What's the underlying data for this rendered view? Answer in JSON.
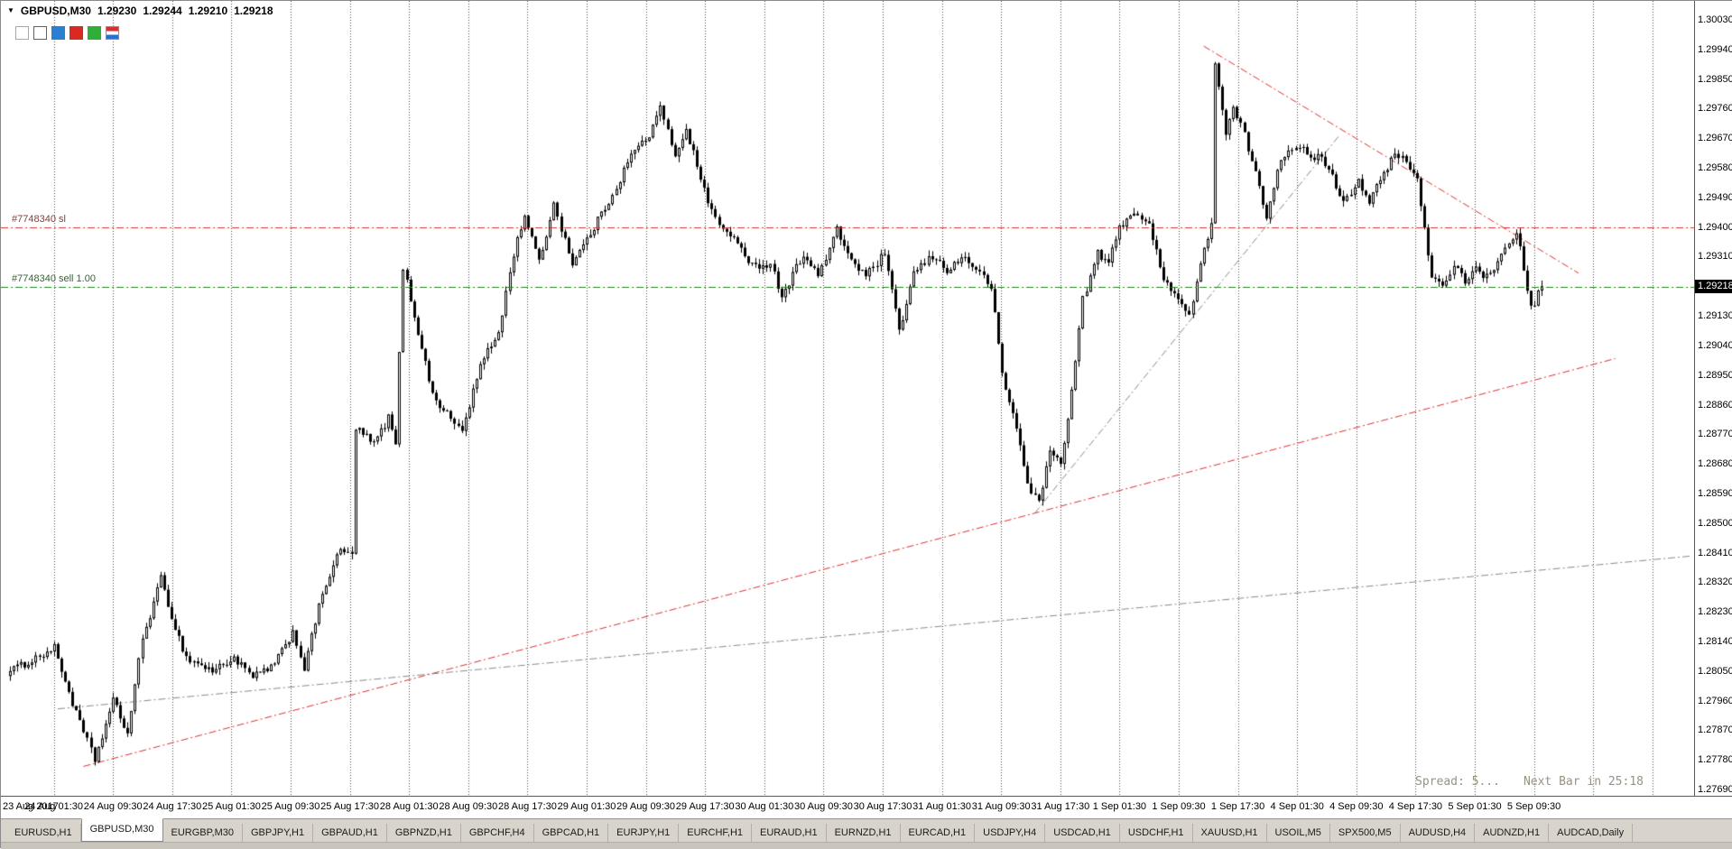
{
  "chart": {
    "symbol_header": {
      "dropdown_icon": "▼",
      "symbol": "GBPUSD,M30",
      "open": "1.29230",
      "high": "1.29244",
      "low": "1.29210",
      "close": "1.29218"
    },
    "toolbar_icons": [
      {
        "name": "white-square-icon",
        "fill": "#ffffff",
        "border": "#a8a8a8"
      },
      {
        "name": "red-outline-square-icon",
        "fill": "#ffffff",
        "border": "#d83030"
      },
      {
        "name": "blue-square-icon",
        "fill": "#2a7fd4",
        "border": "#2a7fd4"
      },
      {
        "name": "red-square-icon",
        "fill": "#d82a20",
        "border": "#d82a20"
      },
      {
        "name": "green-square-icon",
        "fill": "#2fae3a",
        "border": "#2fae3a"
      },
      {
        "name": "flag-stripes-icon",
        "fill": "stripes",
        "border": "#909090",
        "stripes": [
          "#d83030",
          "#ffffff",
          "#2a6fd4"
        ]
      }
    ],
    "orders": [
      {
        "label": "#7748340 sl",
        "price": 1.294,
        "line_color": "#e03030",
        "label_color": "#7a4040"
      },
      {
        "label": "#7748340 sell 1.00",
        "price": 1.29218,
        "line_color": "#1c8a1c",
        "label_color": "#3a5f3a"
      }
    ],
    "current_price": 1.29218,
    "price_badge": "1.29218",
    "status": {
      "spread": "Spread: 5...",
      "next_bar": "Next Bar in 25:18"
    }
  },
  "chart_data": {
    "type": "candlestick",
    "symbol": "GBPUSD",
    "timeframe": "M30",
    "grid": "vertical-dotted",
    "price_axis": {
      "max": 1.3003,
      "min": 1.2769,
      "step": 0.0009,
      "labels": [
        "1.30030",
        "1.29940",
        "1.29850",
        "1.29760",
        "1.29670",
        "1.29580",
        "1.29490",
        "1.29400",
        "1.29310",
        "1.29130",
        "1.29040",
        "1.28950",
        "1.28860",
        "1.28770",
        "1.28680",
        "1.28590",
        "1.28500",
        "1.28410",
        "1.28320",
        "1.28230",
        "1.28140",
        "1.28050",
        "1.27960",
        "1.27870",
        "1.27780",
        "1.27690"
      ]
    },
    "time_axis": [
      "23 Aug 2017",
      "24 Aug 01:30",
      "24 Aug 09:30",
      "24 Aug 17:30",
      "25 Aug 01:30",
      "25 Aug 09:30",
      "25 Aug 17:30",
      "28 Aug 01:30",
      "28 Aug 09:30",
      "28 Aug 17:30",
      "29 Aug 01:30",
      "29 Aug 09:30",
      "29 Aug 17:30",
      "30 Aug 01:30",
      "30 Aug 09:30",
      "30 Aug 17:30",
      "31 Aug 01:30",
      "31 Aug 09:30",
      "31 Aug 17:30",
      "1 Sep 01:30",
      "1 Sep 09:30",
      "1 Sep 17:30",
      "4 Sep 01:30",
      "4 Sep 09:30",
      "4 Sep 17:30",
      "5 Sep 01:30",
      "5 Sep 09:30"
    ],
    "bars_per_label": 16,
    "bar_count": 418,
    "path": [
      [
        2,
        1.2806
      ],
      [
        12,
        1.2812
      ],
      [
        18,
        1.2792
      ],
      [
        23,
        1.2778
      ],
      [
        28,
        1.2796
      ],
      [
        32,
        1.2786
      ],
      [
        36,
        1.2815
      ],
      [
        41,
        1.2833
      ],
      [
        45,
        1.2818
      ],
      [
        48,
        1.2809
      ],
      [
        55,
        1.2805
      ],
      [
        61,
        1.2809
      ],
      [
        66,
        1.2803
      ],
      [
        72,
        1.2807
      ],
      [
        77,
        1.2817
      ],
      [
        80,
        1.2806
      ],
      [
        85,
        1.2829
      ],
      [
        90,
        1.2842
      ],
      [
        93,
        1.284
      ],
      [
        94,
        1.2879
      ],
      [
        99,
        1.2874
      ],
      [
        103,
        1.2882
      ],
      [
        105,
        1.2874
      ],
      [
        107,
        1.2928
      ],
      [
        110,
        1.2913
      ],
      [
        115,
        1.2889
      ],
      [
        119,
        1.2883
      ],
      [
        123,
        1.2878
      ],
      [
        128,
        1.2898
      ],
      [
        133,
        1.2908
      ],
      [
        137,
        1.2932
      ],
      [
        140,
        1.2944
      ],
      [
        144,
        1.2929
      ],
      [
        148,
        1.2947
      ],
      [
        153,
        1.2929
      ],
      [
        158,
        1.2938
      ],
      [
        164,
        1.295
      ],
      [
        169,
        1.2962
      ],
      [
        174,
        1.2968
      ],
      [
        177,
        1.2976
      ],
      [
        181,
        1.2962
      ],
      [
        184,
        1.297
      ],
      [
        189,
        1.2951
      ],
      [
        193,
        1.294
      ],
      [
        198,
        1.2936
      ],
      [
        201,
        1.2928
      ],
      [
        207,
        1.2929
      ],
      [
        210,
        1.2919
      ],
      [
        216,
        1.2932
      ],
      [
        220,
        1.2925
      ],
      [
        225,
        1.2939
      ],
      [
        229,
        1.293
      ],
      [
        233,
        1.2925
      ],
      [
        238,
        1.2932
      ],
      [
        242,
        1.2908
      ],
      [
        246,
        1.2926
      ],
      [
        251,
        1.2931
      ],
      [
        255,
        1.2927
      ],
      [
        260,
        1.2931
      ],
      [
        263,
        1.2927
      ],
      [
        267,
        1.2922
      ],
      [
        270,
        1.2895
      ],
      [
        274,
        1.2879
      ],
      [
        277,
        1.2862
      ],
      [
        280,
        1.2856
      ],
      [
        283,
        1.2872
      ],
      [
        286,
        1.2868
      ],
      [
        289,
        1.289
      ],
      [
        292,
        1.2918
      ],
      [
        296,
        1.2932
      ],
      [
        299,
        1.2929
      ],
      [
        302,
        1.294
      ],
      [
        306,
        1.2945
      ],
      [
        310,
        1.294
      ],
      [
        314,
        1.2925
      ],
      [
        318,
        1.2918
      ],
      [
        321,
        1.2913
      ],
      [
        324,
        1.2928
      ],
      [
        327,
        1.2942
      ],
      [
        328,
        1.299
      ],
      [
        331,
        1.2968
      ],
      [
        333,
        1.2976
      ],
      [
        336,
        1.2968
      ],
      [
        339,
        1.2956
      ],
      [
        342,
        1.2943
      ],
      [
        345,
        1.2958
      ],
      [
        348,
        1.2964
      ],
      [
        351,
        1.2965
      ],
      [
        354,
        1.296
      ],
      [
        357,
        1.2962
      ],
      [
        360,
        1.2955
      ],
      [
        363,
        1.2948
      ],
      [
        367,
        1.2954
      ],
      [
        370,
        1.2948
      ],
      [
        374,
        1.2956
      ],
      [
        377,
        1.2962
      ],
      [
        380,
        1.296
      ],
      [
        383,
        1.2954
      ],
      [
        387,
        1.2925
      ],
      [
        390,
        1.2922
      ],
      [
        393,
        1.2929
      ],
      [
        396,
        1.2923
      ],
      [
        399,
        1.2927
      ],
      [
        401,
        1.2924
      ],
      [
        404,
        1.2928
      ],
      [
        407,
        1.2933
      ],
      [
        410,
        1.2939
      ],
      [
        412,
        1.2927
      ],
      [
        414,
        1.2915
      ],
      [
        417,
        1.29218
      ]
    ],
    "trendlines": [
      {
        "name": "rising-support-red",
        "from": [
          20,
          1.2776
        ],
        "to": [
          437,
          1.29
        ],
        "color": "#e03030",
        "style": "dashdot"
      },
      {
        "name": "falling-resistance-red",
        "from": [
          325,
          1.2995
        ],
        "to": [
          427,
          1.2926
        ],
        "color": "#e03030",
        "style": "dashdot"
      },
      {
        "name": "long-rising-gray",
        "from": [
          13,
          1.27935
        ],
        "to": [
          458,
          1.284
        ],
        "color": "#8a8a8a",
        "style": "dashdot"
      },
      {
        "name": "steep-rising-gray",
        "from": [
          279,
          1.2853
        ],
        "to": [
          362,
          1.2968
        ],
        "color": "#8a8a8a",
        "style": "dashdot"
      }
    ]
  },
  "tabs": {
    "items": [
      {
        "label": "EURUSD,H1",
        "active": false
      },
      {
        "label": "GBPUSD,M30",
        "active": true
      },
      {
        "label": "EURGBP,M30",
        "active": false
      },
      {
        "label": "GBPJPY,H1",
        "active": false
      },
      {
        "label": "GBPAUD,H1",
        "active": false
      },
      {
        "label": "GBPNZD,H1",
        "active": false
      },
      {
        "label": "GBPCHF,H4",
        "active": false
      },
      {
        "label": "GBPCAD,H1",
        "active": false
      },
      {
        "label": "EURJPY,H1",
        "active": false
      },
      {
        "label": "EURCHF,H1",
        "active": false
      },
      {
        "label": "EURAUD,H1",
        "active": false
      },
      {
        "label": "EURNZD,H1",
        "active": false
      },
      {
        "label": "EURCAD,H1",
        "active": false
      },
      {
        "label": "USDJPY,H4",
        "active": false
      },
      {
        "label": "USDCAD,H1",
        "active": false
      },
      {
        "label": "USDCHF,H1",
        "active": false
      },
      {
        "label": "XAUUSD,H1",
        "active": false
      },
      {
        "label": "USOIL,M5",
        "active": false
      },
      {
        "label": "SPX500,M5",
        "active": false
      },
      {
        "label": "AUDUSD,H4",
        "active": false
      },
      {
        "label": "AUDNZD,H1",
        "active": false
      },
      {
        "label": "AUDCAD,Daily",
        "active": false
      }
    ]
  }
}
